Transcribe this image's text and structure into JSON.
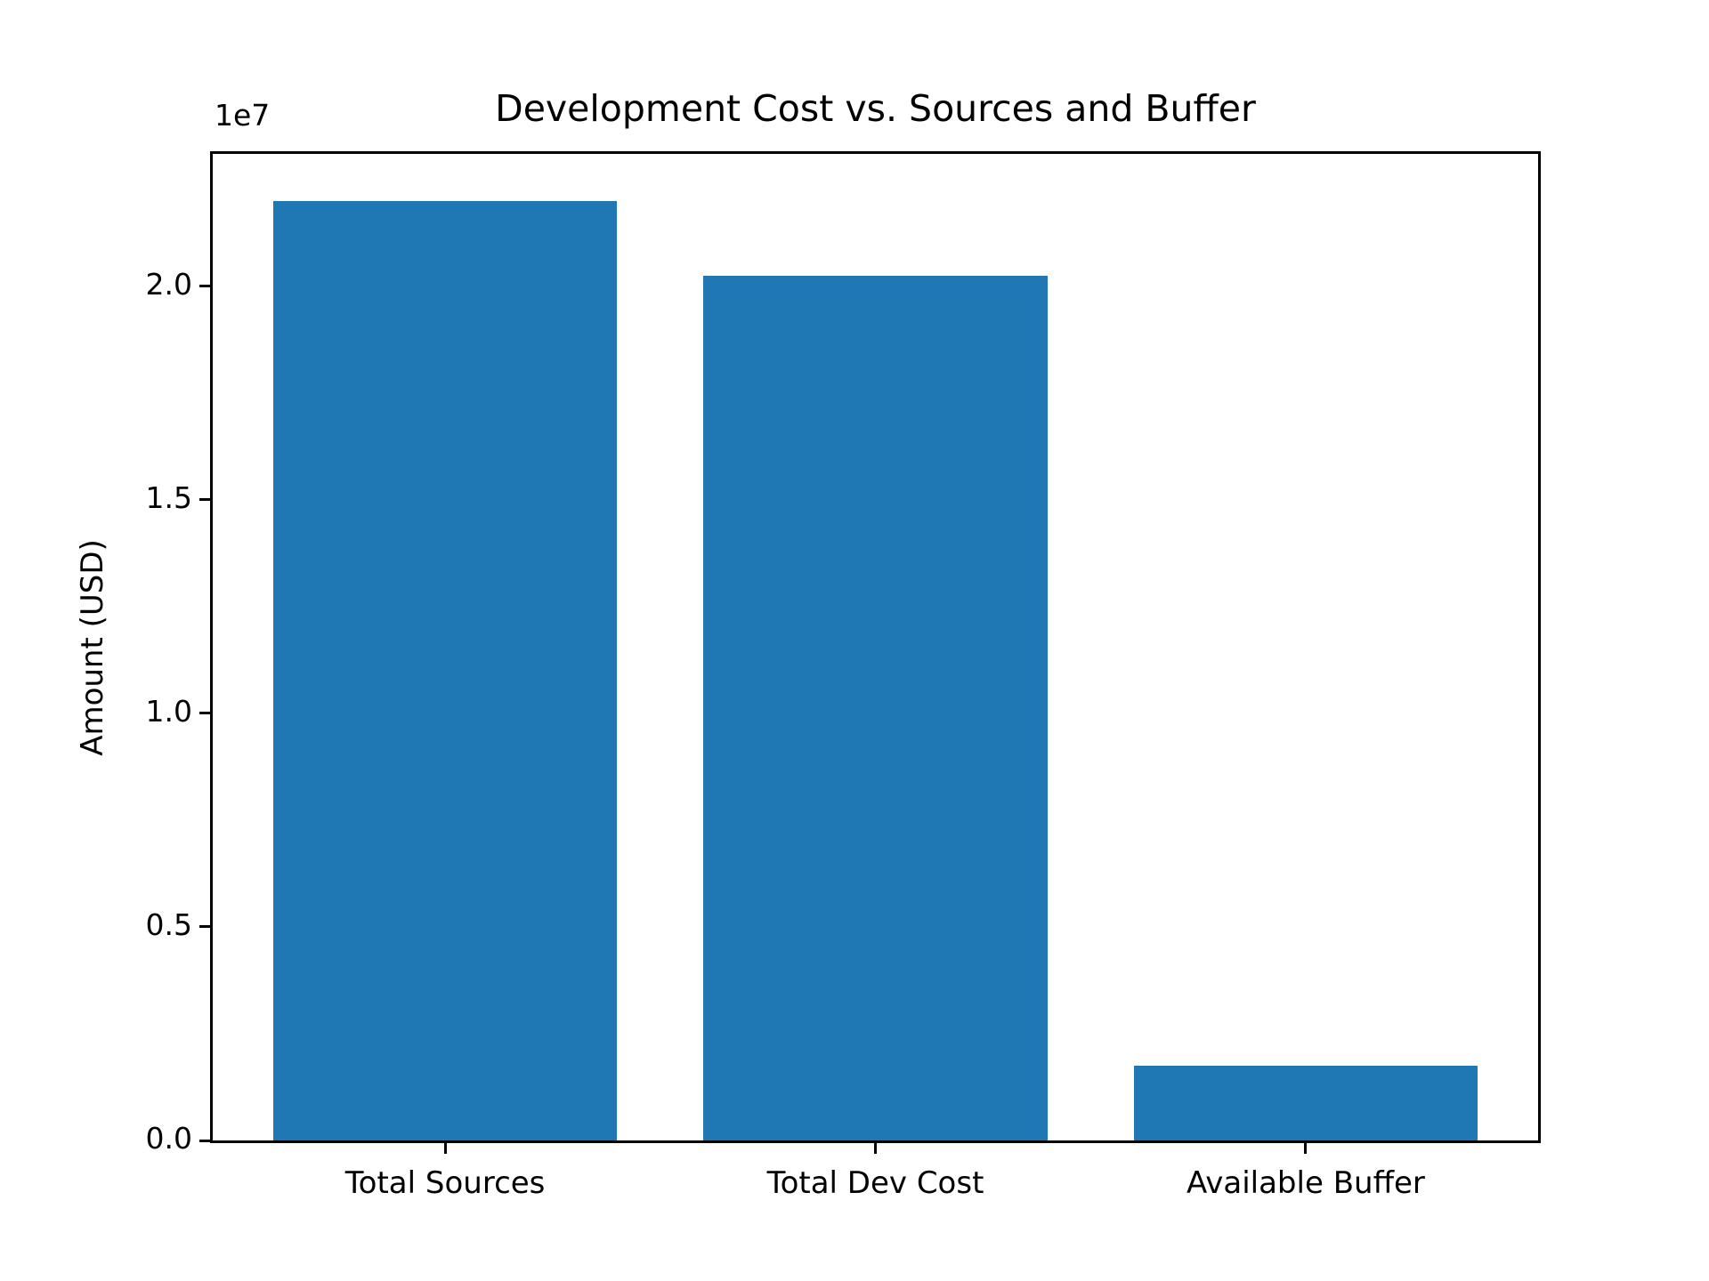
{
  "chart_data": {
    "type": "bar",
    "title": "Development Cost vs. Sources and Buffer",
    "xlabel": "",
    "ylabel": "Amount (USD)",
    "y_offset_text": "1e7",
    "categories": [
      "Total Sources",
      "Total Dev Cost",
      "Available Buffer"
    ],
    "values": [
      22000000,
      20250000,
      1750000
    ],
    "ylim": [
      0,
      23100000
    ],
    "yticks": [
      0,
      5000000,
      10000000,
      15000000,
      20000000
    ],
    "ytick_labels": [
      "0.0",
      "0.5",
      "1.0",
      "1.5",
      "2.0"
    ],
    "bar_color": "#1f77b4",
    "axis_color": "#000000",
    "background_color": "#ffffff",
    "grid": false,
    "legend": null,
    "bar_width_fraction": 0.8
  }
}
